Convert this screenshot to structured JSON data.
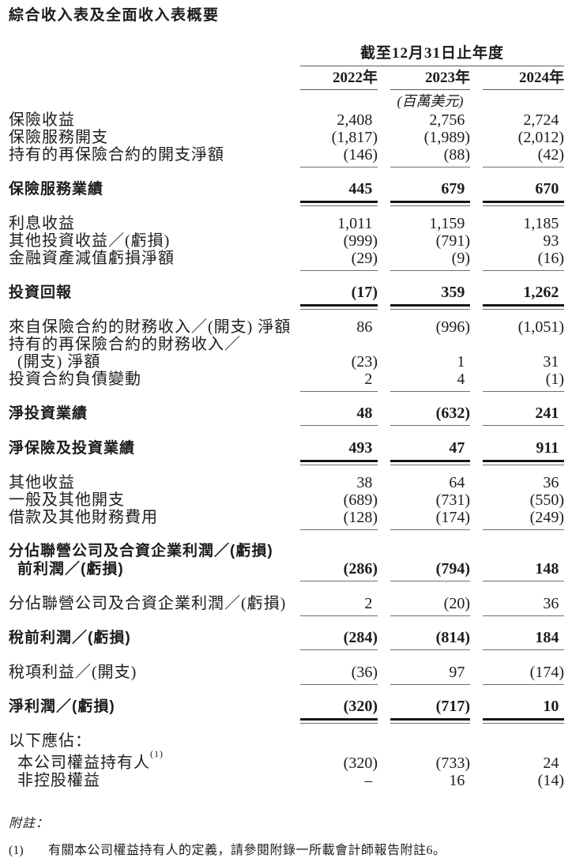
{
  "page": {
    "title": "綜合收入表及全面收入表概要"
  },
  "colors": {
    "background": "#ffffff",
    "text": "#1c1c1c",
    "rule_light": "#6f6f6f",
    "rule_heavy": "#161616"
  },
  "table": {
    "period_header": "截至12月31日止年度",
    "columns": [
      "2022年",
      "2023年",
      "2024年"
    ],
    "unit_note": "(百萬美元)",
    "rows": [
      {
        "label": "保險收益",
        "values": [
          "2,408",
          "2,756",
          "2,724"
        ]
      },
      {
        "label": "保險服務開支",
        "values": [
          "(1,817)",
          "(1,989)",
          "(2,012)"
        ]
      },
      {
        "label": "持有的再保險合約的開支淨額",
        "values": [
          "(146)",
          "(88)",
          "(42)"
        ],
        "rule": "single"
      },
      {
        "label": "保險服務業績",
        "values": [
          "445",
          "679",
          "670"
        ],
        "bold": true,
        "rule": "double",
        "gap": true
      },
      {
        "label": "利息收益",
        "values": [
          "1,011",
          "1,159",
          "1,185"
        ],
        "gap": true
      },
      {
        "label": "其他投資收益／(虧損)",
        "values": [
          "(999)",
          "(791)",
          "93"
        ]
      },
      {
        "label": "金融資產減值虧損淨額",
        "values": [
          "(29)",
          "(9)",
          "(16)"
        ],
        "rule": "single"
      },
      {
        "label": "投資回報",
        "values": [
          "(17)",
          "359",
          "1,262"
        ],
        "bold": true,
        "rule": "double",
        "gap": true
      },
      {
        "label": "來自保險合約的財務收入／(開支) 淨額",
        "values": [
          "86",
          "(996)",
          "(1,051)"
        ],
        "gap": true
      },
      {
        "label": "持有的再保險合約的財務收入／",
        "values": null
      },
      {
        "label": "(開支) 淨額",
        "values": [
          "(23)",
          "1",
          "31"
        ],
        "indent": true
      },
      {
        "label": "投資合約負債變動",
        "values": [
          "2",
          "4",
          "(1)"
        ],
        "rule": "single"
      },
      {
        "label": "淨投資業績",
        "values": [
          "48",
          "(632)",
          "241"
        ],
        "bold": true,
        "rule": "single",
        "gap": true
      },
      {
        "label": "淨保險及投資業績",
        "values": [
          "493",
          "47",
          "911"
        ],
        "bold": true,
        "rule": "double",
        "gap": true
      },
      {
        "label": "其他收益",
        "values": [
          "38",
          "64",
          "36"
        ],
        "gap": true
      },
      {
        "label": "一般及其他開支",
        "values": [
          "(689)",
          "(731)",
          "(550)"
        ]
      },
      {
        "label": "借款及其他財務費用",
        "values": [
          "(128)",
          "(174)",
          "(249)"
        ],
        "rule": "single"
      },
      {
        "label": "分佔聯營公司及合資企業利潤／(虧損)",
        "values": null,
        "bold": true,
        "gap": true
      },
      {
        "label": "前利潤／(虧損)",
        "values": [
          "(286)",
          "(794)",
          "148"
        ],
        "bold": true,
        "indent": true,
        "rule": "single"
      },
      {
        "label": "分佔聯營公司及合資企業利潤／(虧損)",
        "values": [
          "2",
          "(20)",
          "36"
        ],
        "rule": "single",
        "gap": true
      },
      {
        "label": "稅前利潤／(虧損)",
        "values": [
          "(284)",
          "(814)",
          "184"
        ],
        "bold": true,
        "rule": "single",
        "gap": true
      },
      {
        "label": "稅項利益／(開支)",
        "values": [
          "(36)",
          "97",
          "(174)"
        ],
        "rule": "single",
        "gap": true
      },
      {
        "label": "淨利潤／(虧損)",
        "values": [
          "(320)",
          "(717)",
          "10"
        ],
        "bold": true,
        "rule": "double",
        "gap": true
      },
      {
        "label": "以下應佔：",
        "values": null,
        "gap": true
      },
      {
        "label": "本公司權益持有人",
        "sup": "(1)",
        "values": [
          "(320)",
          "(733)",
          "24"
        ],
        "indent": true
      },
      {
        "label": "非控股權益",
        "values": [
          "–",
          "16",
          "(14)"
        ],
        "indent": true
      }
    ]
  },
  "footnotes": {
    "notes_label": "附註：",
    "items": [
      {
        "marker": "(1)",
        "text": "有關本公司權益持有人的定義，請參閱附錄一所載會計師報告附註6。"
      }
    ]
  }
}
